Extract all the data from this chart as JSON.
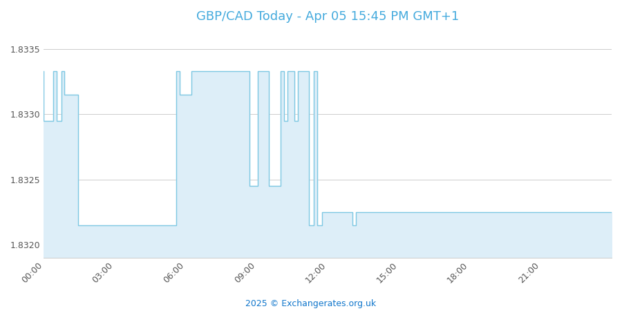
{
  "title": "GBP/CAD Today - Apr 05 15:45 PM GMT+1",
  "title_color": "#44aadd",
  "footer": "2025 © Exchangerates.org.uk",
  "footer_color": "#1177cc",
  "line_color": "#7ec8e3",
  "fill_color": "#ddeef8",
  "background_color": "#ffffff",
  "ylim": [
    1.8319,
    1.83365
  ],
  "yticks": [
    1.832,
    1.8325,
    1.833,
    1.8335
  ],
  "xticks": [
    0,
    3,
    6,
    9,
    12,
    15,
    18,
    21
  ],
  "xlim": [
    0,
    24
  ],
  "tick_labels": [
    "00:00",
    "03:00",
    "06:00",
    "09:00",
    "12:00",
    "15:00",
    "18:00",
    "21:00"
  ],
  "time_points": [
    0.0,
    0.4,
    0.55,
    0.75,
    0.85,
    1.3,
    1.45,
    5.6,
    5.75,
    6.05,
    6.25,
    8.55,
    8.7,
    9.05,
    9.5,
    10.0,
    10.15,
    10.3,
    10.6,
    10.75,
    11.2,
    11.4,
    11.55,
    11.75,
    13.05,
    13.2,
    13.55,
    15.2,
    24.0
  ],
  "rate_points": [
    1.83333,
    1.83295,
    1.83333,
    1.83295,
    1.83333,
    1.83315,
    1.83315,
    1.83215,
    1.83333,
    1.83315,
    1.83315,
    1.83333,
    1.83333,
    1.83245,
    1.83333,
    1.83245,
    1.83333,
    1.83295,
    1.83333,
    1.83295,
    1.83333,
    1.83215,
    1.83333,
    1.83215,
    1.83225,
    1.83215,
    1.83225,
    1.83225,
    1.83225
  ]
}
